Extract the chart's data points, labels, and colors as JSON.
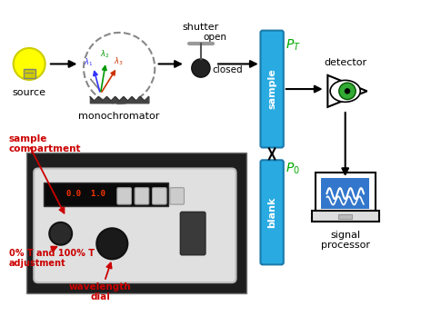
{
  "bg_color": "#ffffff",
  "title": "",
  "labels": {
    "source": "source",
    "monochromator": "monochromator",
    "shutter": "shutter",
    "open": "open",
    "closed": "closed",
    "detector": "detector",
    "sample": "sample",
    "blank": "blank",
    "signal_processor": "signal\nprocessor",
    "PT": "$P_T$",
    "P0": "$P_0$",
    "sample_compartment": "sample\ncompartment",
    "zero_adj": "0% T and 100% T\nadjustment",
    "wavelength_dial": "wavelength\ndial",
    "lambda1": "$\\lambda_1$",
    "lambda2": "$\\lambda_2$",
    "lambda3": "$\\lambda_3$"
  },
  "colors": {
    "blue_tube": "#29abe2",
    "arrow": "#000000",
    "red_label": "#cc0000",
    "green_label": "#00aa00",
    "lambda1": "#3333ff",
    "lambda2": "#009900",
    "lambda3": "#cc3300",
    "bulb_yellow": "#ffff00",
    "bulb_outline": "#cccc00",
    "eye_green": "#33aa33",
    "laptop_blue": "#3377cc",
    "dashed_circle": "#888888"
  }
}
